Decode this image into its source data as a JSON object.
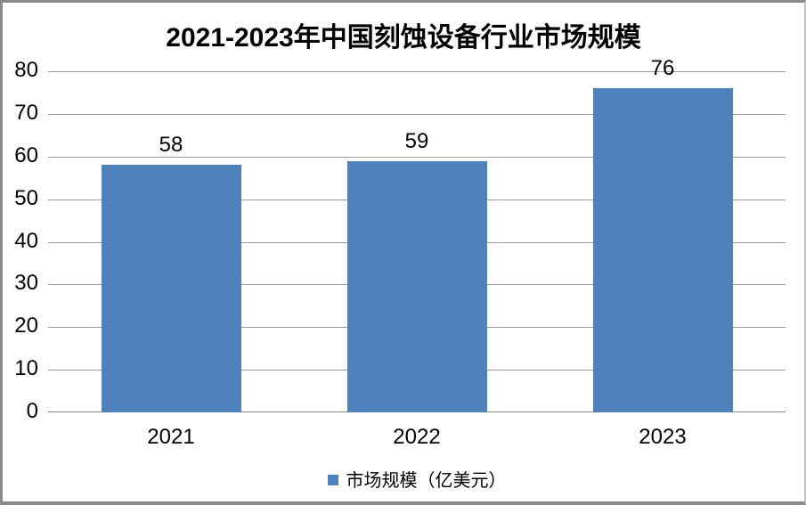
{
  "chart_data": {
    "type": "bar",
    "title": "2021-2023年中国刻蚀设备行业市场规模",
    "categories": [
      "2021",
      "2022",
      "2023"
    ],
    "values": [
      58,
      59,
      76
    ],
    "series": [
      {
        "name": "市场规模（亿美元）",
        "values": [
          58,
          59,
          76
        ]
      }
    ],
    "data_labels": [
      "58",
      "59",
      "76"
    ],
    "xlabel": "",
    "ylabel": "",
    "ylim": [
      0,
      80
    ],
    "yticks": [
      0,
      10,
      20,
      30,
      40,
      50,
      60,
      70,
      80
    ],
    "grid": true,
    "legend_position": "bottom",
    "legend_label": "市场规模（亿美元）",
    "colors": {
      "bar": "#4F81BD",
      "gridline": "#9C9C9C",
      "axis_line": "#8A8A8A",
      "frame_border": "#8A8A8A",
      "text": "#000000",
      "background": "#FFFFFF"
    }
  }
}
